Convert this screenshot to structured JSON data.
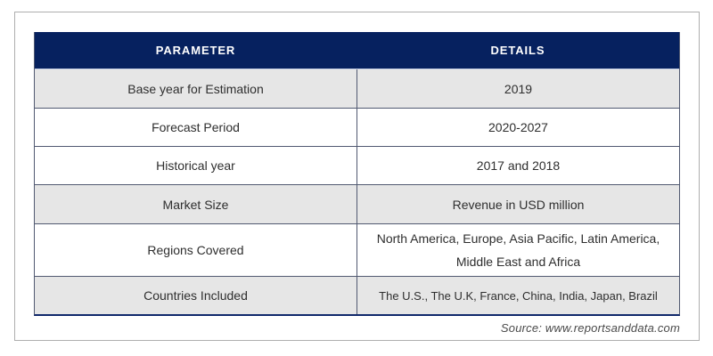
{
  "table": {
    "header": {
      "parameter": "PARAMETER",
      "details": "DETAILS"
    },
    "rows": [
      {
        "parameter": "Base year for Estimation",
        "detail": "2019"
      },
      {
        "parameter": "Forecast Period",
        "detail": "2020-2027"
      },
      {
        "parameter": "Historical year",
        "detail": "2017 and 2018"
      },
      {
        "parameter": "Market Size",
        "detail": "Revenue in USD million"
      },
      {
        "parameter": "Regions Covered",
        "detail": "North America, Europe, Asia Pacific, Latin America, Middle East and Africa",
        "detail_line1": "North America, Europe, Asia Pacific, Latin America,",
        "detail_line2": "Middle East and Africa"
      },
      {
        "parameter": "Countries Included",
        "detail": "The U.S., The  U.K, France, China, India, Japan, Brazil"
      }
    ]
  },
  "footer": {
    "source": "Source: www.reportsanddata.com"
  },
  "colors": {
    "header_bg": "#06215f",
    "header_text": "#ffffff",
    "row_shade_bg": "#e6e6e6",
    "row_white_bg": "#ffffff",
    "cell_border": "#515971",
    "body_text": "#2e2e2e",
    "outer_frame_border": "#aeaeae",
    "source_text": "#4a4a4a"
  }
}
